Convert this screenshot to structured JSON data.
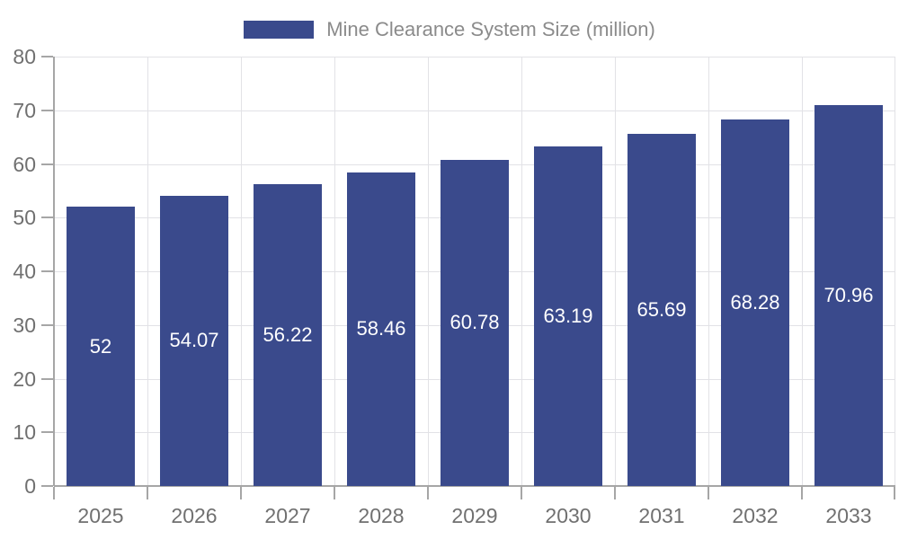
{
  "chart_data": {
    "type": "bar",
    "title": "Mine Clearance System Size (million)",
    "categories": [
      "2025",
      "2026",
      "2027",
      "2028",
      "2029",
      "2030",
      "2031",
      "2032",
      "2033"
    ],
    "values": [
      52,
      54.07,
      56.22,
      58.46,
      60.78,
      63.19,
      65.69,
      68.28,
      70.96
    ],
    "value_labels": [
      "52",
      "54.07",
      "56.22",
      "58.46",
      "60.78",
      "63.19",
      "65.69",
      "68.28",
      "70.96"
    ],
    "xlabel": "",
    "ylabel": "",
    "ylim": [
      0,
      80
    ],
    "ytick_interval": 10,
    "ytick_labels": [
      "0",
      "10",
      "20",
      "30",
      "40",
      "50",
      "60",
      "70",
      "80"
    ],
    "grid": true,
    "legend_position": "top-center",
    "value_label_position": "inside-center",
    "colors": {
      "bar": "#3a4a8c",
      "value_label": "#ffffff",
      "axis_line": "#a6a6a6",
      "gridline": "#e2e2e6",
      "tick_label": "#707070",
      "legend_text": "#8b8b8b",
      "background": "#ffffff"
    }
  }
}
